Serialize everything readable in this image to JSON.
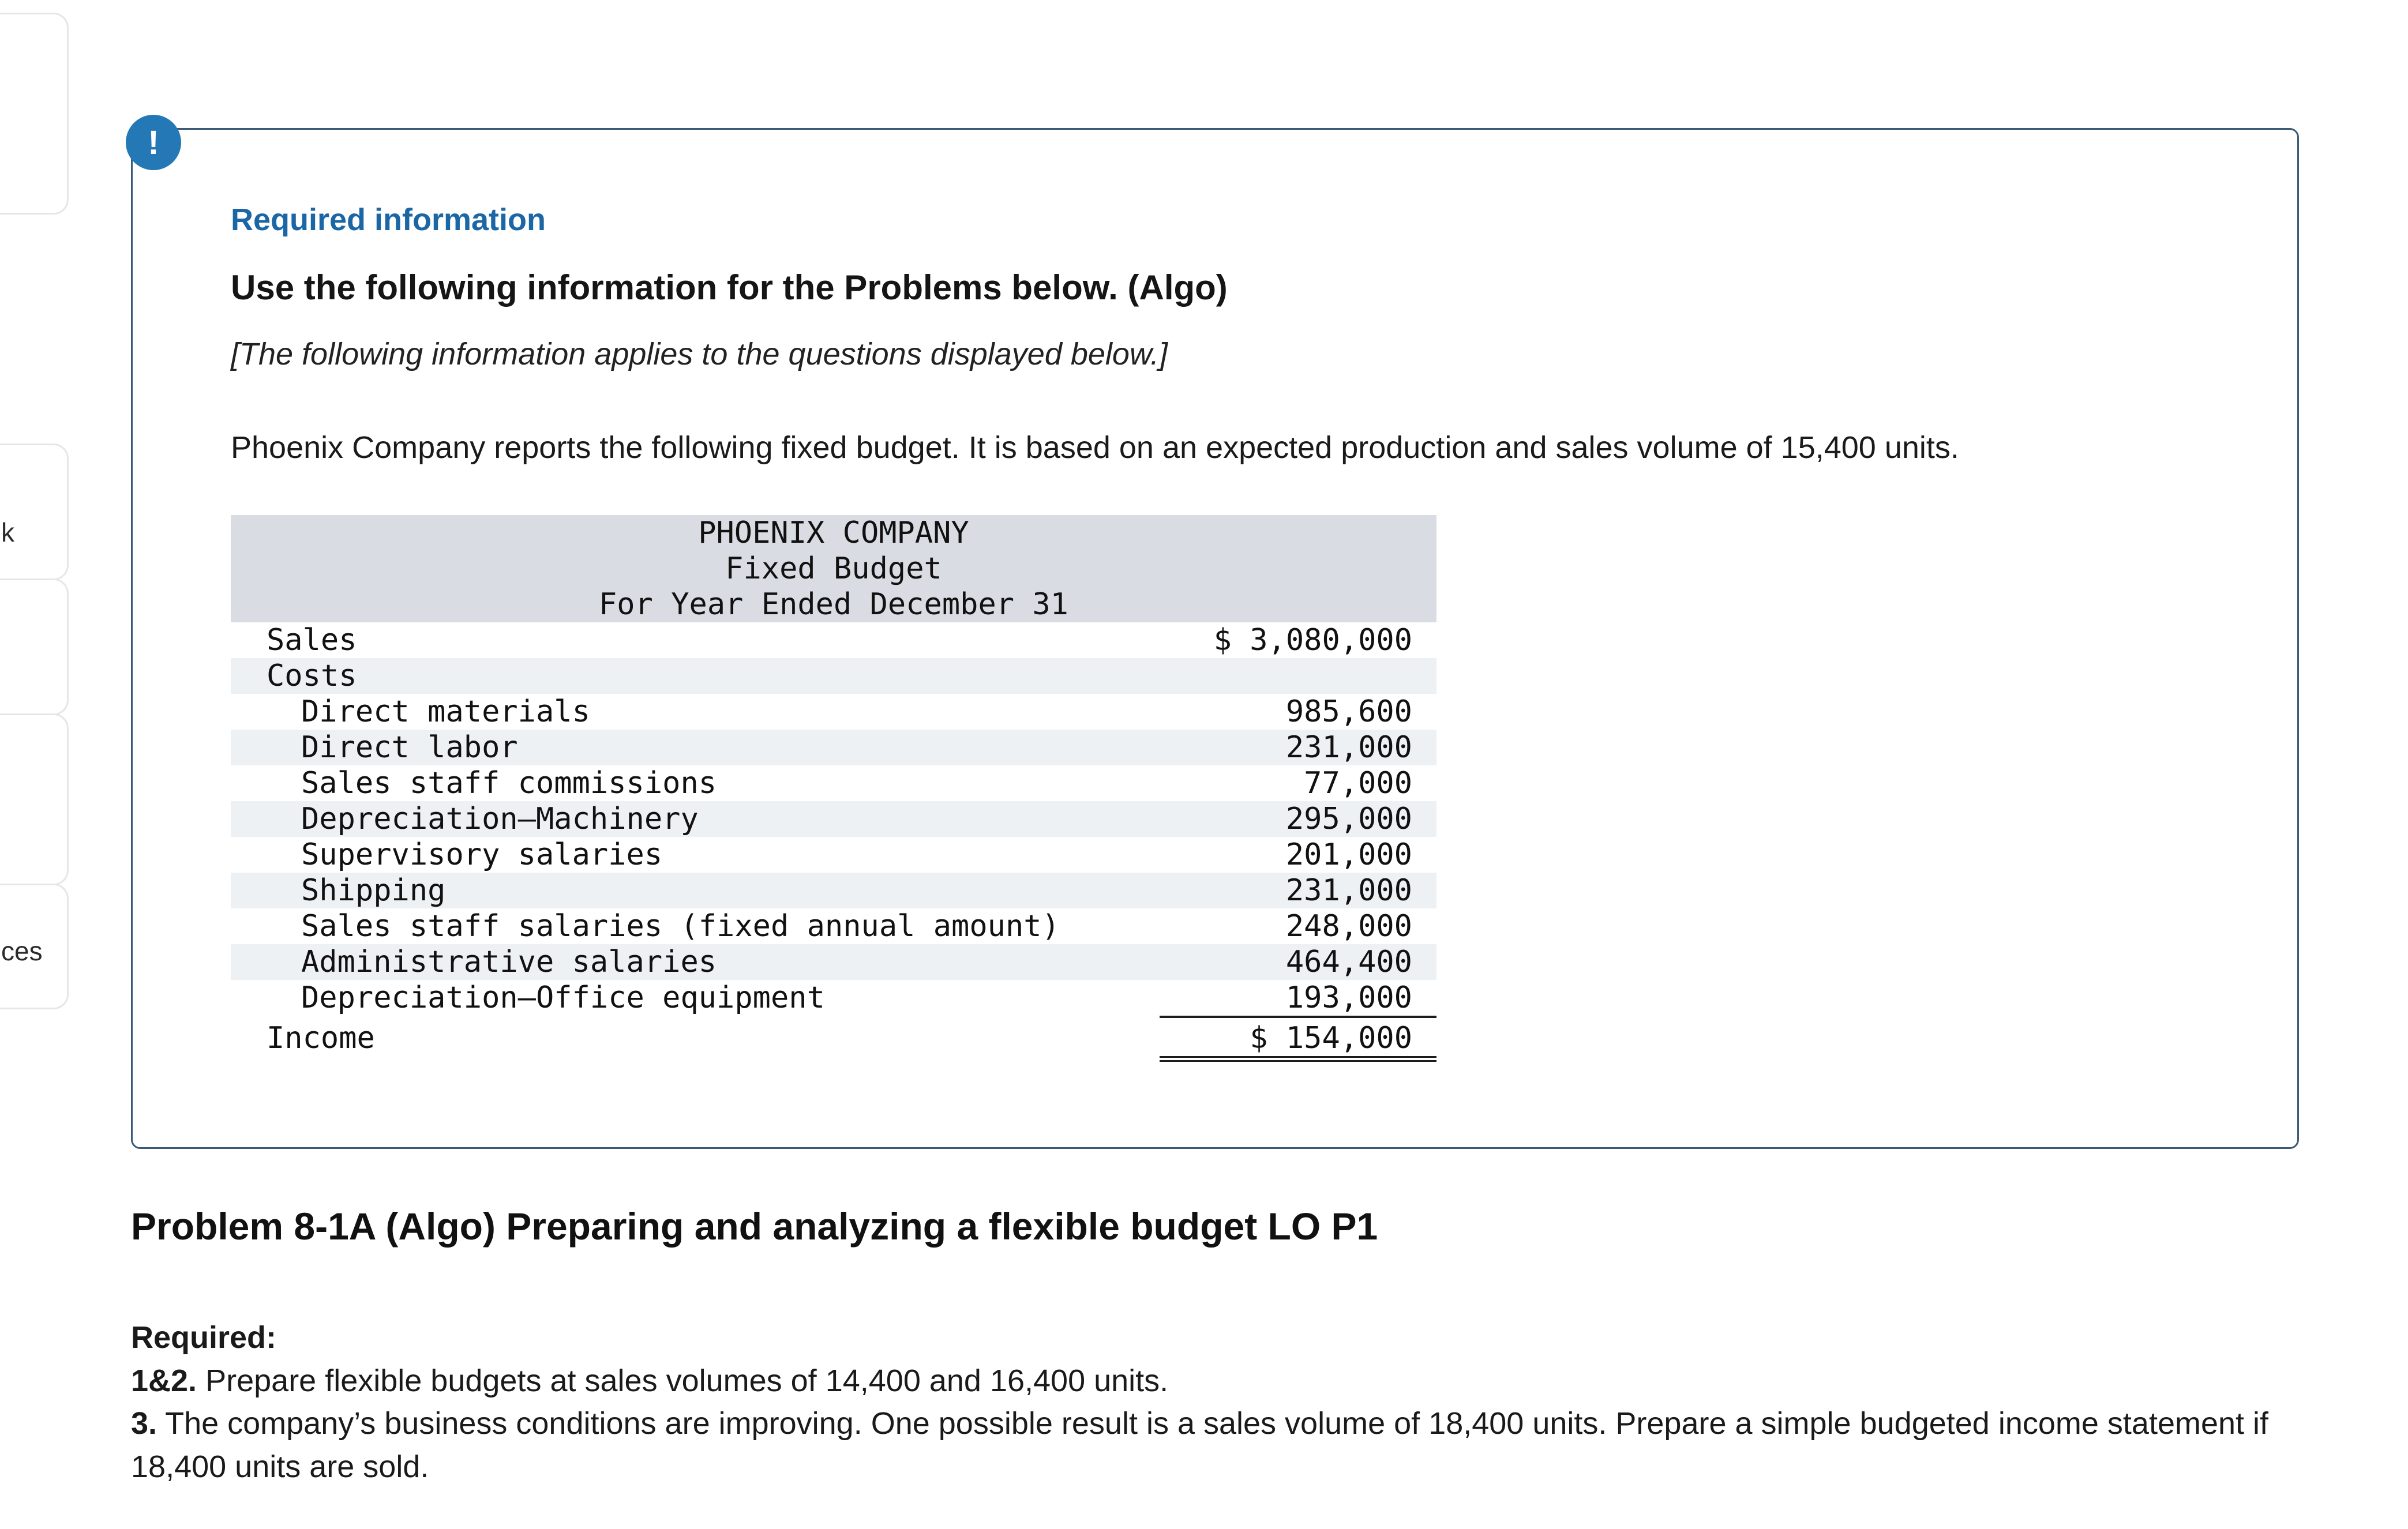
{
  "left_rail": {
    "fragment_label_1": "k",
    "fragment_label_2": "ces"
  },
  "callout": {
    "icon_glyph": "!",
    "kicker": "Required information",
    "title": "Use the following information for the Problems below. (Algo)",
    "subtitle": "[The following information applies to the questions displayed below.]",
    "intro": "Phoenix Company reports the following fixed budget. It is based on an expected production and sales volume of 15,400 units."
  },
  "budget_table": {
    "header": [
      "PHOENIX COMPANY",
      "Fixed Budget",
      "For Year Ended December 31"
    ],
    "rows": [
      {
        "label": "Sales",
        "amount": "$ 3,080,000"
      },
      {
        "label": "Costs",
        "amount": ""
      },
      {
        "label": "Direct materials",
        "amount": "985,600"
      },
      {
        "label": "Direct labor",
        "amount": "231,000"
      },
      {
        "label": "Sales staff commissions",
        "amount": "77,000"
      },
      {
        "label": "Depreciation—Machinery",
        "amount": "295,000"
      },
      {
        "label": "Supervisory salaries",
        "amount": "201,000"
      },
      {
        "label": "Shipping",
        "amount": "231,000"
      },
      {
        "label": "Sales staff salaries (fixed annual amount)",
        "amount": "248,000"
      },
      {
        "label": "Administrative salaries",
        "amount": "464,400"
      },
      {
        "label": "Depreciation—Office equipment",
        "amount": "193,000"
      },
      {
        "label": "Income",
        "amount": "$ 154,000"
      }
    ]
  },
  "problem": {
    "title": "Problem 8-1A (Algo) Preparing and analyzing a flexible budget LO P1",
    "required_label": "Required:",
    "items": [
      {
        "prefix": "1&2.",
        "text": "Prepare flexible budgets at sales volumes of 14,400 and 16,400 units."
      },
      {
        "prefix": "3.",
        "text": "The company’s business conditions are improving. One possible result is a sales volume of 18,400 units. Prepare a simple budgeted income statement if 18,400 units are sold."
      }
    ]
  },
  "colors": {
    "accent_blue": "#1b66a5",
    "badge_blue": "#2478b6",
    "panel_border": "#3a5a76",
    "table_header_bg": "#d9dde3",
    "row_stripe_bg": "#eef1f4"
  }
}
